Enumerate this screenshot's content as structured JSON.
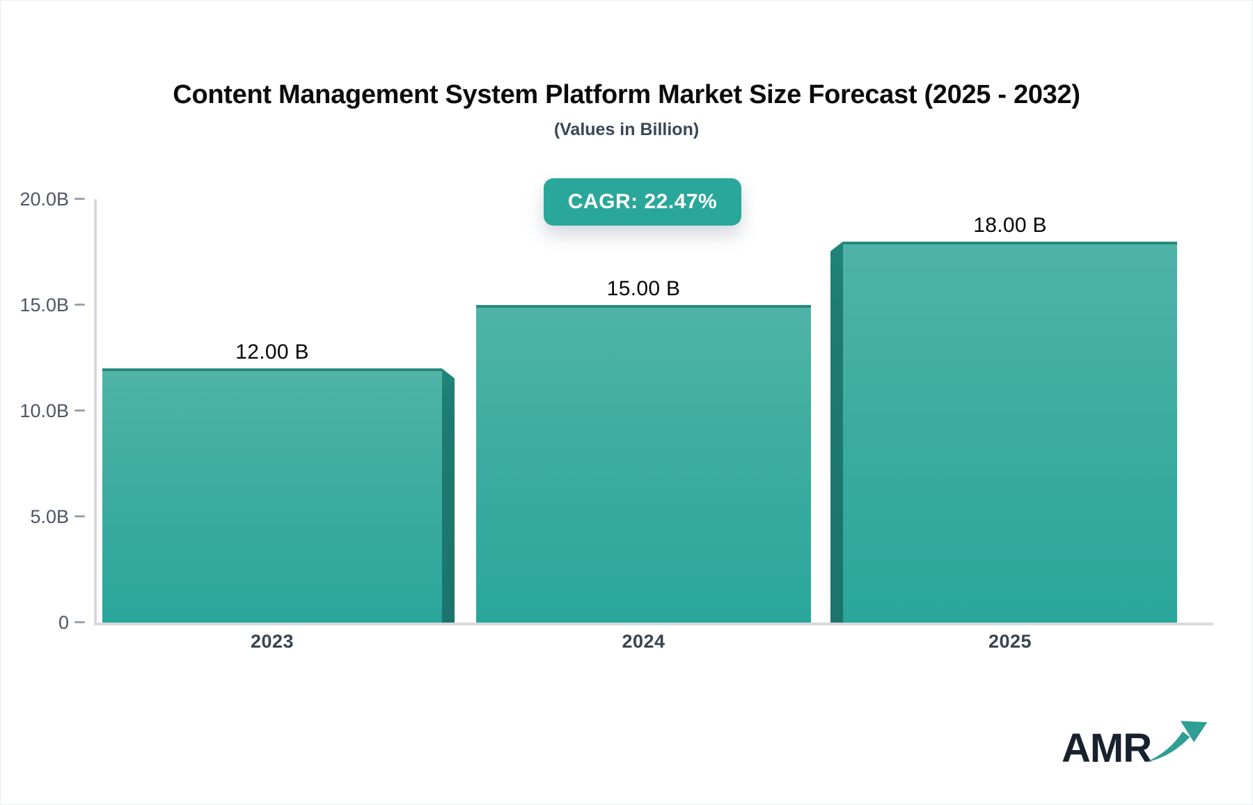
{
  "title": "Content Management System Platform Market Size Forecast (2025 - 2032)",
  "subtitle": "(Values in Billion)",
  "cagr_badge": "CAGR: 22.47%",
  "logo": {
    "text": "AMR"
  },
  "colors": {
    "accent": "#2aa79b",
    "bar_top": "#4fb3a8",
    "bar_mid": "#3fada1",
    "bar_bottom": "#2aa69b",
    "bar_side": "#1e7b72",
    "bar_edge": "#27897e",
    "axis_line": "#d6d9de",
    "tick": "#9ba2ac",
    "y_label": "#4c5563",
    "x_label": "#3a4450",
    "value_label": "#060606",
    "title": "#0a0a0a",
    "subtitle": "#3a4656",
    "logo": "#19212e",
    "logo_arrow": "#2f9e94"
  },
  "chart_data": {
    "type": "bar",
    "title": "Content Management System Platform Market Size Forecast (2025 - 2032)",
    "subtitle": "(Values in Billion)",
    "annotations": [
      "CAGR: 22.47%"
    ],
    "categories": [
      "2023",
      "2024",
      "2025"
    ],
    "values": [
      12,
      15,
      18
    ],
    "value_labels": [
      "12.00 B",
      "15.00 B",
      "18.00 B"
    ],
    "xlabel": "",
    "ylabel": "",
    "ylim": [
      0,
      20
    ],
    "yticks": [
      {
        "label": "20.0B",
        "value": 20
      },
      {
        "label": "15.0B",
        "value": 15
      },
      {
        "label": "10.0B",
        "value": 10
      },
      {
        "label": "5.0B",
        "value": 5
      },
      {
        "label": "0",
        "value": 0
      }
    ],
    "grid": false,
    "legend": false
  }
}
